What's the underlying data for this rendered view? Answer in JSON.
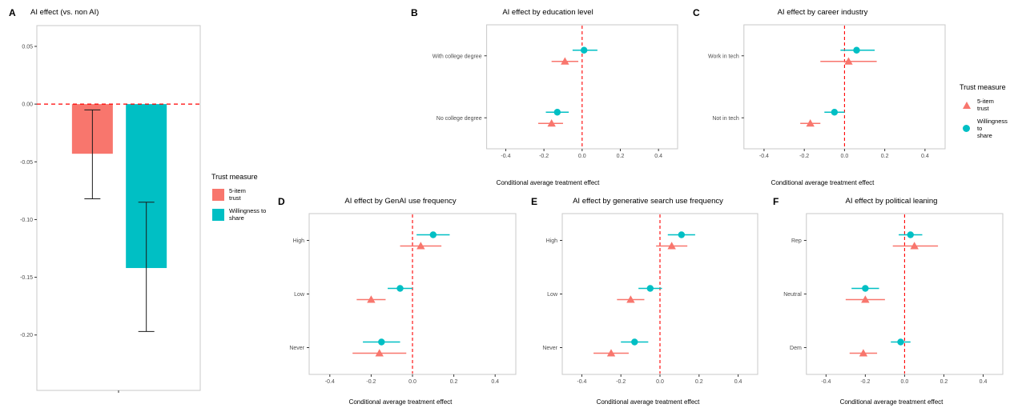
{
  "legends": {
    "fill": {
      "title": "Trust measure",
      "items": [
        {
          "label": "5-item\ntrust",
          "color": "#F8766D",
          "shape": "square"
        },
        {
          "label": "Willingness to\nshare",
          "color": "#00BFC4",
          "shape": "square"
        }
      ]
    },
    "shape": {
      "title": "Trust measure",
      "items": [
        {
          "label": "5-item\ntrust",
          "color": "#F8766D",
          "shape": "triangle"
        },
        {
          "label": "Willingness to\nshare",
          "color": "#00BFC4",
          "shape": "circle"
        }
      ]
    }
  },
  "chart_data": [
    {
      "panel": "A",
      "type": "bar",
      "title": "AI effect (vs. non AI)",
      "ylim": [
        -0.248,
        0.068
      ],
      "yticks": [
        0.05,
        0,
        -0.05,
        -0.1,
        -0.15,
        -0.2
      ],
      "refline": 0,
      "refline_color": "#FF0000",
      "series": [
        {
          "name": "5-item trust",
          "color": "#F8766D",
          "value": -0.043,
          "ci_low": -0.082,
          "ci_high": -0.005
        },
        {
          "name": "Willingness to share",
          "color": "#00BFC4",
          "value": -0.142,
          "ci_low": -0.197,
          "ci_high": -0.085
        }
      ]
    },
    {
      "panel": "B",
      "type": "pointrange",
      "title": "AI effect by education level",
      "xlabel": "Conditional average treatment effect",
      "xlim": [
        -0.5,
        0.5
      ],
      "xticks": [
        -0.4,
        -0.2,
        0,
        0.2,
        0.4
      ],
      "refline": 0,
      "refline_color": "#FF0000",
      "categories": [
        "With college degree",
        "No college degree"
      ],
      "series": [
        {
          "name": "5-item trust",
          "color": "#F8766D",
          "shape": "triangle",
          "points": [
            {
              "est": -0.09,
              "lo": -0.16,
              "hi": -0.02
            },
            {
              "est": -0.16,
              "lo": -0.23,
              "hi": -0.1
            }
          ]
        },
        {
          "name": "Willingness to share",
          "color": "#00BFC4",
          "shape": "circle",
          "points": [
            {
              "est": 0.01,
              "lo": -0.05,
              "hi": 0.08
            },
            {
              "est": -0.13,
              "lo": -0.19,
              "hi": -0.07
            }
          ]
        }
      ]
    },
    {
      "panel": "C",
      "type": "pointrange",
      "title": "AI effect by career industry",
      "xlabel": "Conditional average treatment effect",
      "xlim": [
        -0.5,
        0.5
      ],
      "xticks": [
        -0.4,
        -0.2,
        0,
        0.2,
        0.4
      ],
      "refline": 0,
      "refline_color": "#FF0000",
      "categories": [
        "Work in tech",
        "Not in tech"
      ],
      "series": [
        {
          "name": "5-item trust",
          "color": "#F8766D",
          "shape": "triangle",
          "points": [
            {
              "est": 0.02,
              "lo": -0.12,
              "hi": 0.16
            },
            {
              "est": -0.17,
              "lo": -0.22,
              "hi": -0.12
            }
          ]
        },
        {
          "name": "Willingness to share",
          "color": "#00BFC4",
          "shape": "circle",
          "points": [
            {
              "est": 0.06,
              "lo": -0.02,
              "hi": 0.15
            },
            {
              "est": -0.05,
              "lo": -0.1,
              "hi": 0
            }
          ]
        }
      ]
    },
    {
      "panel": "D",
      "type": "pointrange",
      "title": "AI effect by GenAI use frequency",
      "xlabel": "Conditional average treatment effect",
      "xlim": [
        -0.5,
        0.5
      ],
      "xticks": [
        -0.4,
        -0.2,
        0,
        0.2,
        0.4
      ],
      "refline": 0,
      "refline_color": "#FF0000",
      "categories": [
        "High",
        "Low",
        "Never"
      ],
      "series": [
        {
          "name": "5-item trust",
          "color": "#F8766D",
          "shape": "triangle",
          "points": [
            {
              "est": 0.04,
              "lo": -0.06,
              "hi": 0.14
            },
            {
              "est": -0.2,
              "lo": -0.27,
              "hi": -0.13
            },
            {
              "est": -0.16,
              "lo": -0.29,
              "hi": -0.03
            }
          ]
        },
        {
          "name": "Willingness to share",
          "color": "#00BFC4",
          "shape": "circle",
          "points": [
            {
              "est": 0.1,
              "lo": 0.02,
              "hi": 0.18
            },
            {
              "est": -0.06,
              "lo": -0.12,
              "hi": 0
            },
            {
              "est": -0.15,
              "lo": -0.24,
              "hi": -0.06
            }
          ]
        }
      ]
    },
    {
      "panel": "E",
      "type": "pointrange",
      "title": "AI effect by generative search use frequency",
      "xlabel": "Conditional average treatment effect",
      "xlim": [
        -0.5,
        0.5
      ],
      "xticks": [
        -0.4,
        -0.2,
        0,
        0.2,
        0.4
      ],
      "refline": 0,
      "refline_color": "#FF0000",
      "categories": [
        "High",
        "Low",
        "Never"
      ],
      "series": [
        {
          "name": "5-item trust",
          "color": "#F8766D",
          "shape": "triangle",
          "points": [
            {
              "est": 0.06,
              "lo": -0.02,
              "hi": 0.14
            },
            {
              "est": -0.15,
              "lo": -0.22,
              "hi": -0.08
            },
            {
              "est": -0.25,
              "lo": -0.34,
              "hi": -0.16
            }
          ]
        },
        {
          "name": "Willingness to share",
          "color": "#00BFC4",
          "shape": "circle",
          "points": [
            {
              "est": 0.11,
              "lo": 0.04,
              "hi": 0.18
            },
            {
              "est": -0.05,
              "lo": -0.11,
              "hi": 0.01
            },
            {
              "est": -0.13,
              "lo": -0.2,
              "hi": -0.06
            }
          ]
        }
      ]
    },
    {
      "panel": "F",
      "type": "pointrange",
      "title": "AI effect by political leaning",
      "xlabel": "Conditional average treatment effect",
      "xlim": [
        -0.5,
        0.5
      ],
      "xticks": [
        -0.4,
        -0.2,
        0,
        0.2,
        0.4
      ],
      "refline": 0,
      "refline_color": "#FF0000",
      "categories": [
        "Rep",
        "Neutral",
        "Dem"
      ],
      "series": [
        {
          "name": "5-item trust",
          "color": "#F8766D",
          "shape": "triangle",
          "points": [
            {
              "est": 0.05,
              "lo": -0.06,
              "hi": 0.17
            },
            {
              "est": -0.2,
              "lo": -0.3,
              "hi": -0.1
            },
            {
              "est": -0.21,
              "lo": -0.28,
              "hi": -0.14
            }
          ]
        },
        {
          "name": "Willingness to share",
          "color": "#00BFC4",
          "shape": "circle",
          "points": [
            {
              "est": 0.03,
              "lo": -0.03,
              "hi": 0.09
            },
            {
              "est": -0.2,
              "lo": -0.27,
              "hi": -0.13
            },
            {
              "est": -0.02,
              "lo": -0.07,
              "hi": 0.03
            }
          ]
        }
      ]
    }
  ]
}
